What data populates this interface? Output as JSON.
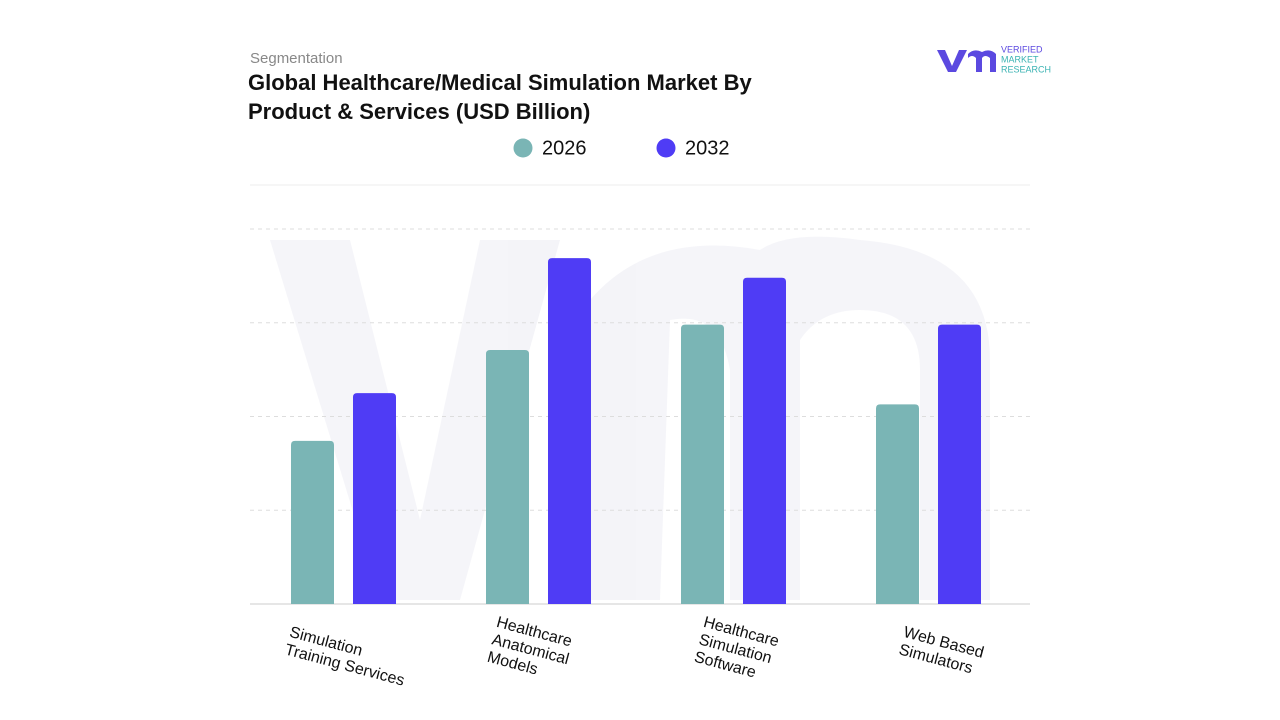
{
  "chart_data": {
    "type": "bar",
    "subtitle": "Segmentation",
    "title": "Global Healthcare/Medical Simulation Market By\nProduct & Services (USD Billion)",
    "logo": {
      "line1": "VERIFIED",
      "line2": "MARKET",
      "line3": "RESEARCH"
    },
    "categories": [
      "Simulation\nTraining Services",
      "Healthcare\nAnatomical\nModels",
      "Healthcare\nSimulation\nSoftware",
      "Web Based\nSimulators"
    ],
    "series": [
      {
        "name": "2026",
        "color": "#7ab5b5",
        "values": [
          1.74,
          2.71,
          2.98,
          2.13
        ]
      },
      {
        "name": "2032",
        "color": "#4f3cf5",
        "values": [
          2.25,
          3.69,
          3.48,
          2.98
        ]
      }
    ],
    "ylim": [
      0,
      4.47
    ],
    "yticks": [
      1,
      2,
      3,
      4
    ],
    "grid": true
  }
}
